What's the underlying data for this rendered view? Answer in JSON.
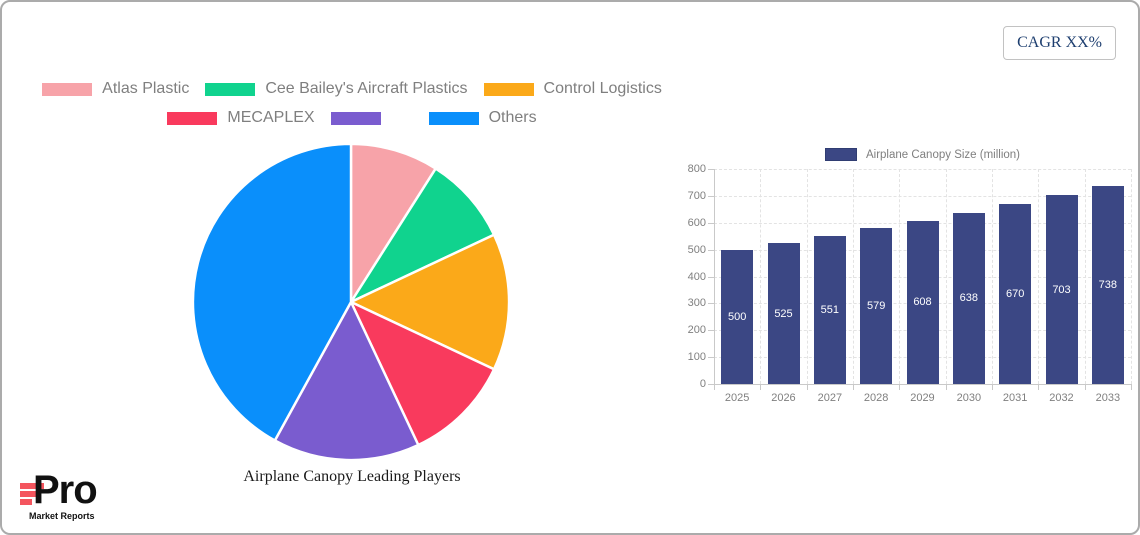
{
  "card": {
    "cagr_label": "CAGR XX%"
  },
  "logo": {
    "text": "Pro",
    "subtext": "Market Reports"
  },
  "chart_data": [
    {
      "type": "pie",
      "title": "Airplane Canopy Leading Players",
      "labels": [
        "Atlas Plastic",
        "Cee Bailey's Aircraft Plastics",
        "Control Logistics",
        "MECAPLEX",
        "",
        "Others"
      ],
      "values": [
        9,
        9,
        14,
        11,
        15,
        42
      ],
      "colors": [
        "#f7a3a9",
        "#10d38e",
        "#fba919",
        "#f93a5d",
        "#7a5ccf",
        "#0a8ffb"
      ],
      "legend_rows": [
        [
          0,
          1,
          2
        ],
        [
          3,
          4,
          5
        ]
      ],
      "start_angle": "top",
      "direction": "clockwise",
      "slice_border_color": "#ffffff"
    },
    {
      "type": "bar",
      "series_label": "Airplane Canopy Size (million)",
      "categories": [
        "2025",
        "2026",
        "2027",
        "2028",
        "2029",
        "2030",
        "2031",
        "2032",
        "2033"
      ],
      "values": [
        500,
        525,
        551,
        579,
        608,
        638,
        670,
        703,
        738
      ],
      "ylim": [
        0,
        800
      ],
      "ytick_step": 100,
      "bar_color": "#3b4784",
      "value_label_color": "#ffffff",
      "grid": true,
      "legend_position": "top"
    }
  ]
}
